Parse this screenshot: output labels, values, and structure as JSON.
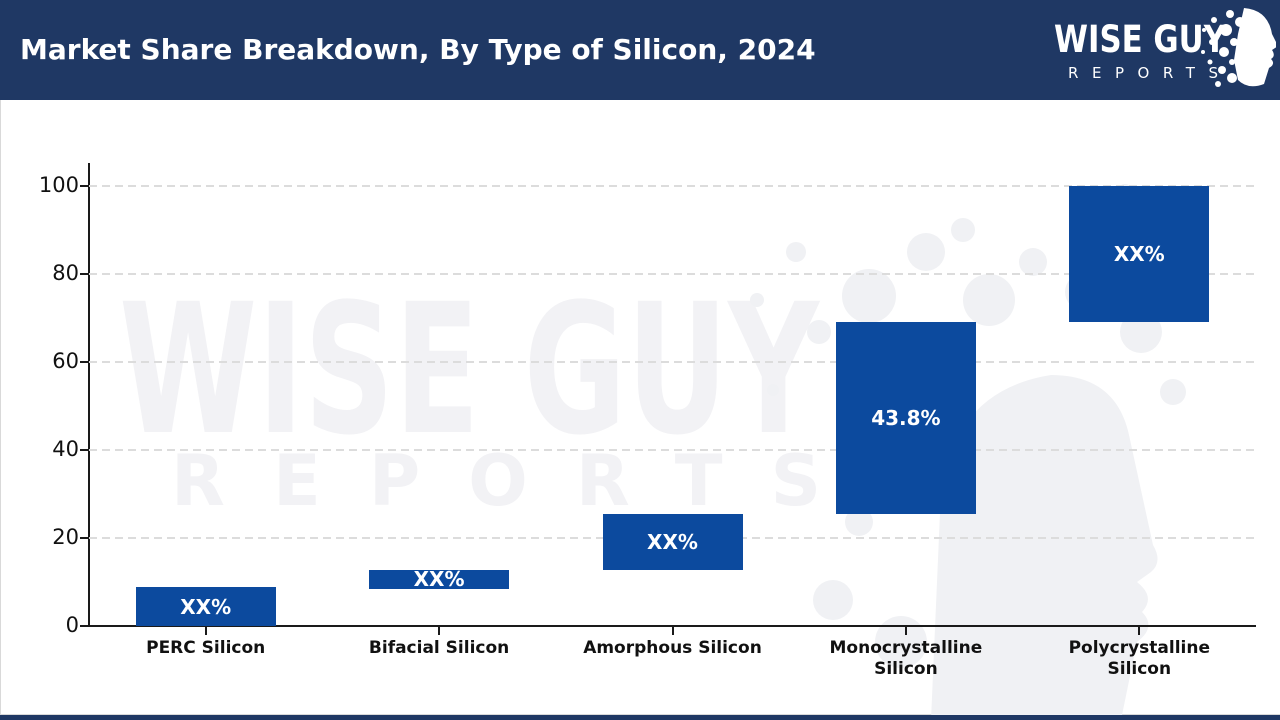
{
  "header": {
    "title": "Market Share Breakdown, By Type of Silicon, 2024",
    "bg_color": "#1f3864",
    "logo": {
      "line1": "WISE GUY",
      "line2": "REPORTS"
    }
  },
  "watermark": {
    "line1": "WISE GUY",
    "line2": "REPORTS"
  },
  "chart_data": {
    "type": "bar",
    "subtype": "waterfall",
    "title": "Market Share Breakdown, By Type of Silicon, 2024",
    "xlabel": "",
    "ylabel": "",
    "ylim": [
      0,
      105
    ],
    "yticks": [
      0,
      20,
      40,
      60,
      80,
      100
    ],
    "grid": "horizontal dashed",
    "legend": "none",
    "bar_color": "#0c4a9e",
    "label_color": "#ffffff",
    "categories": [
      "PERC Silicon",
      "Bifacial Silicon",
      "Amorphous Silicon",
      "Monocrystalline\nSilicon",
      "Polycrystalline\nSilicon"
    ],
    "segments": [
      {
        "category": "PERC Silicon",
        "start": 0,
        "end": 8.8,
        "label": "XX%"
      },
      {
        "category": "Bifacial Silicon",
        "start": 8.5,
        "end": 12.7,
        "label": "XX%"
      },
      {
        "category": "Amorphous Silicon",
        "start": 12.7,
        "end": 25.4,
        "label": "XX%"
      },
      {
        "category": "Monocrystalline Silicon",
        "start": 25.4,
        "end": 69.2,
        "label": "43.8%"
      },
      {
        "category": "Polycrystalline Silicon",
        "start": 69.2,
        "end": 100,
        "label": "XX%"
      }
    ]
  }
}
